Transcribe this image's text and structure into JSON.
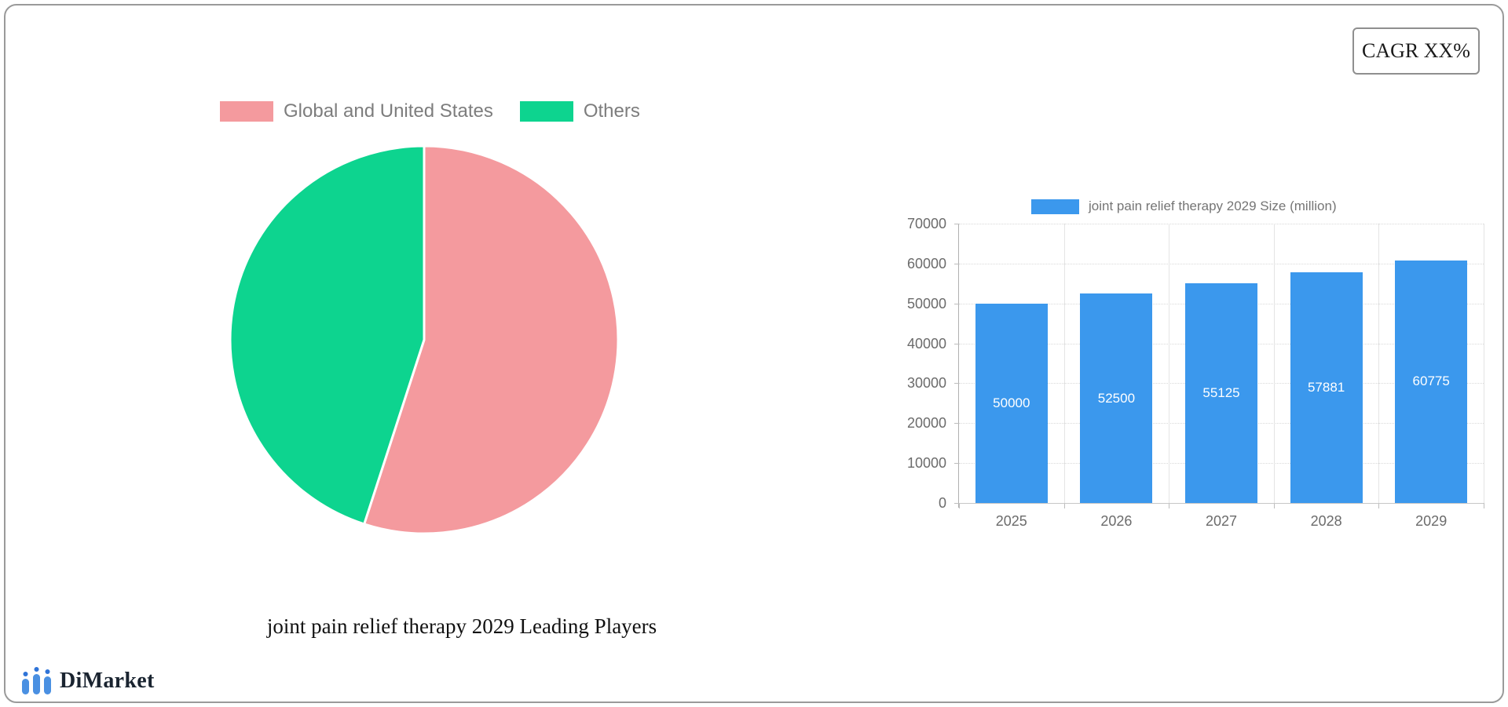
{
  "badge": {
    "label": "CAGR XX%"
  },
  "brand": {
    "name": "DiMarket",
    "icon": "bar-chart-logo-icon",
    "icon_bar_color": "#4a90e2",
    "icon_dot_color": "#2f74d8"
  },
  "colors": {
    "pie_slice_1": "#f49a9e",
    "pie_slice_2": "#0dd48f",
    "bar_fill": "#3b98ed",
    "legend_text": "#7d7d7d",
    "axis_text": "#6b6b6b",
    "frame_border": "#9a9a9a"
  },
  "chart_data": [
    {
      "type": "pie",
      "title": "joint pain relief therapy 2029 Leading Players",
      "labels": [
        "Global and United States",
        "Others"
      ],
      "values": [
        55,
        45
      ],
      "unit": "percent-estimated-from-arc-angles",
      "colors": [
        "#f49a9e",
        "#0dd48f"
      ],
      "start_angle_deg": 0,
      "direction": "clockwise",
      "legend_position": "top",
      "slice_border_color": "#ffffff"
    },
    {
      "type": "bar",
      "title": "joint pain relief therapy 2029 Size (million)",
      "legend_label": "joint pain relief therapy 2029 Size (million)",
      "categories": [
        "2025",
        "2026",
        "2027",
        "2028",
        "2029"
      ],
      "values": [
        50000,
        52500,
        55125,
        57881,
        60775
      ],
      "value_labels": [
        "50000",
        "52500",
        "55125",
        "57881",
        "60775"
      ],
      "ylim": [
        0,
        70000
      ],
      "ytick_step": 10000,
      "ytick_labels": [
        "0",
        "10000",
        "20000",
        "30000",
        "40000",
        "50000",
        "60000",
        "70000"
      ],
      "bar_color": "#3b98ed",
      "value_label_style": "white-inside-bar",
      "grid": true,
      "legend_position": "top"
    }
  ]
}
